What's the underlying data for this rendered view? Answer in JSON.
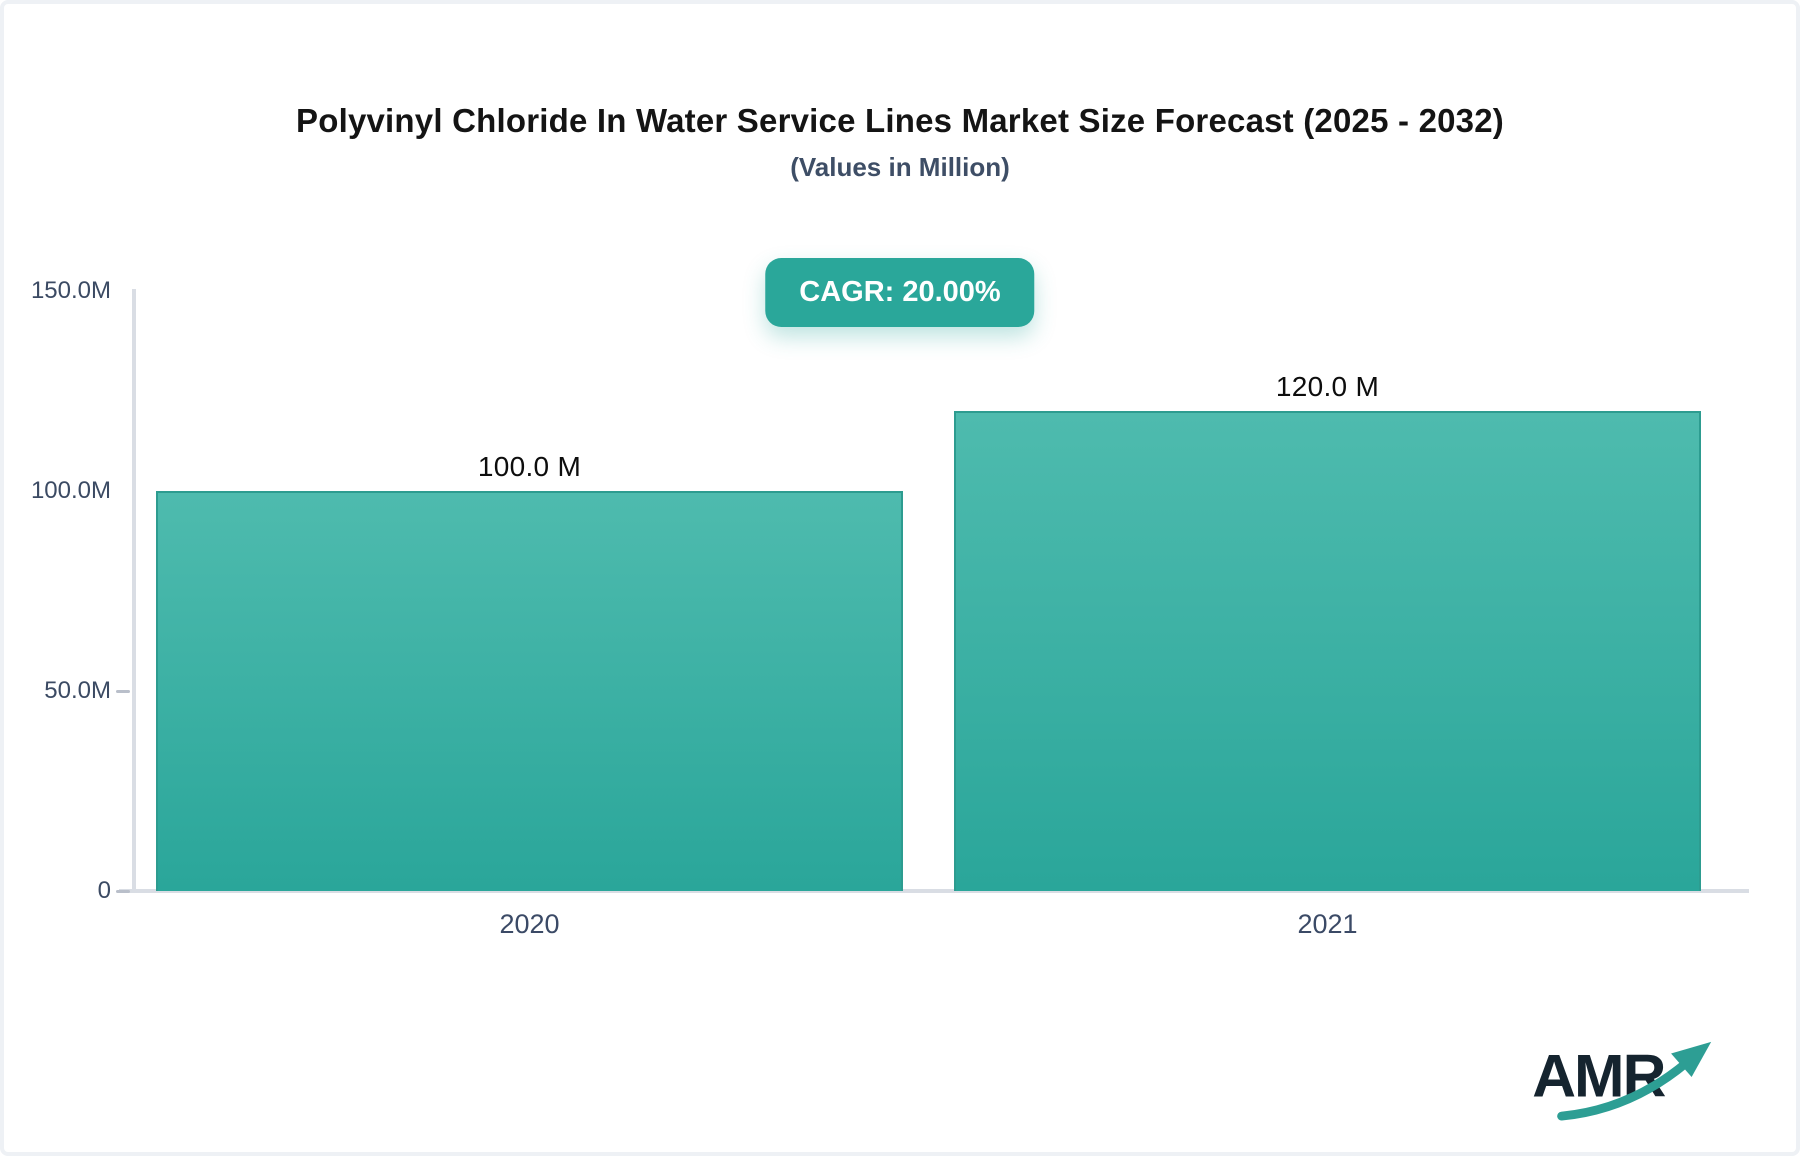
{
  "page": {
    "title": "Polyvinyl Chloride In Water Service Lines Market Size Forecast (2025 - 2032)",
    "subtitle": "(Values in Million)",
    "cagr_label": "CAGR: 20.00%",
    "logo_text": "AMR"
  },
  "colors": {
    "accent_teal": "#2aa79a",
    "bar_gradient_top": "#4ebbae",
    "bar_gradient_bottom": "#2aa69a",
    "bar_edge": "#2d9c90",
    "axis_line": "#d9dde4",
    "tick_text": "#3b4a63",
    "value_label_text": "#0d0d0d",
    "badge_text": "#ffffff",
    "logo_dark": "#15242f",
    "logo_arrow_teal": "#2d9e94"
  },
  "chart_data": {
    "type": "bar",
    "title": "Polyvinyl Chloride In Water Service Lines Market Size Forecast (2025 - 2032)",
    "subtitle": "(Values in Million)",
    "annotation": "CAGR: 20.00%",
    "categories": [
      "2020",
      "2021"
    ],
    "values": [
      100.0,
      120.0
    ],
    "value_labels": [
      "100.0 M",
      "120.0 M"
    ],
    "xlabel": "",
    "ylabel": "",
    "ylim": [
      0,
      150
    ],
    "yticks": [
      {
        "label": "150.0M",
        "value": 150,
        "dash": false
      },
      {
        "label": "100.0M",
        "value": 100,
        "dash": false
      },
      {
        "label": "50.0M",
        "value": 50,
        "dash": true
      },
      {
        "label": "0",
        "value": 0,
        "dash": true
      }
    ],
    "legend": null,
    "grid": false,
    "units": "Million"
  }
}
